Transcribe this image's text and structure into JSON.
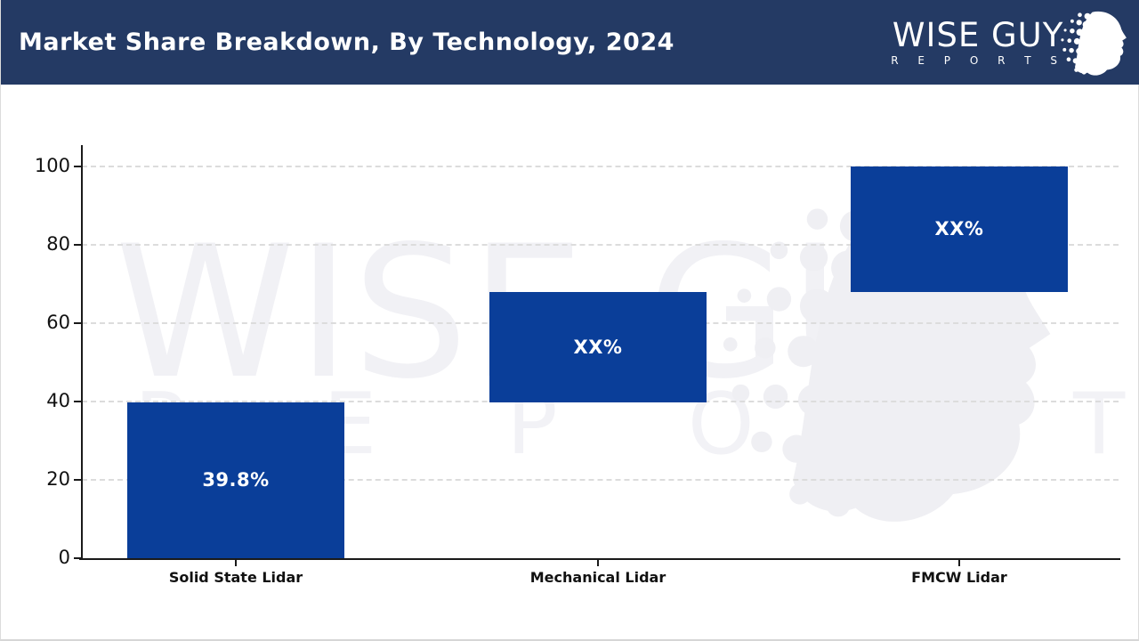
{
  "header": {
    "title": "Market Share Breakdown, By Technology, 2024",
    "logo": {
      "line1": "WISE GUY",
      "line2": "R E P O R T S"
    }
  },
  "watermark": {
    "line1": "WISE GUY",
    "line2": "R E P O R T S"
  },
  "chart_data": {
    "type": "bar",
    "subtype": "waterfall-stacked-segments",
    "title": "Market Share Breakdown, By Technology, 2024",
    "categories": [
      "Solid State Lidar",
      "Mechanical Lidar",
      "FMCW Lidar"
    ],
    "bars": [
      {
        "category": "Solid State Lidar",
        "base": 0,
        "top": 39.8,
        "label": "39.8%"
      },
      {
        "category": "Mechanical Lidar",
        "base": 39.8,
        "top": 68,
        "label": "XX%"
      },
      {
        "category": "FMCW Lidar",
        "base": 68,
        "top": 100,
        "label": "XX%"
      }
    ],
    "ylim": [
      0,
      100
    ],
    "yticks": [
      0,
      20,
      40,
      60,
      80,
      100
    ],
    "xlabel": "",
    "ylabel": "",
    "legend": "none",
    "grid": "horizontal-dashed",
    "bar_color": "#0a3e99",
    "value_label_color": "#ffffff"
  },
  "colors": {
    "header_bg": "#243a64",
    "bar": "#0a3e99",
    "grid": "#dcdcdc",
    "axis": "#1a1a1a",
    "watermark": "#f1f1f5"
  }
}
